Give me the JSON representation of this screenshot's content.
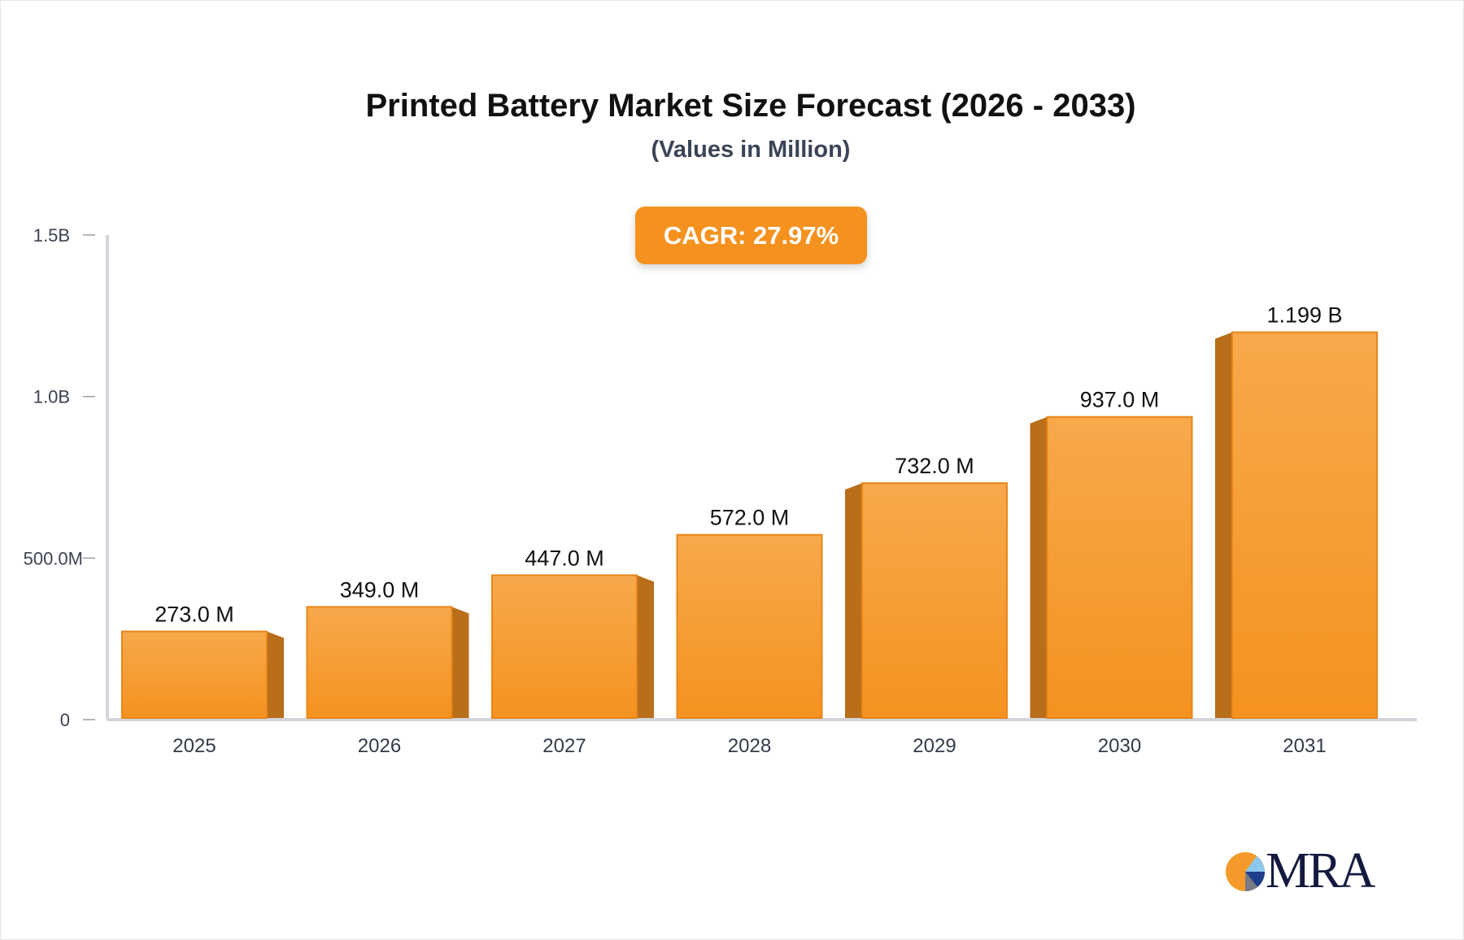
{
  "chart_data": {
    "type": "bar",
    "title": "Printed Battery Market Size Forecast (2026 - 2033)",
    "subtitle": "(Values in Million)",
    "annotation": "CAGR: 27.97%",
    "categories": [
      "2025",
      "2026",
      "2027",
      "2028",
      "2029",
      "2030",
      "2031"
    ],
    "values": [
      273.0,
      349.0,
      447.0,
      572.0,
      732.0,
      937.0,
      1199.0
    ],
    "data_labels": [
      "273.0 M",
      "349.0 M",
      "447.0 M",
      "572.0 M",
      "732.0 M",
      "937.0 M",
      "1.199 B"
    ],
    "yticks": [
      0,
      500,
      1000,
      1500
    ],
    "ytick_labels": [
      "0",
      "500.0M",
      "1.0B",
      "1.5B"
    ],
    "ylim": [
      0,
      1500
    ],
    "xlabel": "",
    "ylabel": "",
    "grid": false,
    "colors": {
      "bar_top": "#f7a94c",
      "bar_bottom": "#f5921f",
      "bar_side": "#b96e1a",
      "cagr_badge": "#f5921f",
      "axis": "#d3d5dc"
    }
  },
  "logo": {
    "text": "MRA"
  }
}
